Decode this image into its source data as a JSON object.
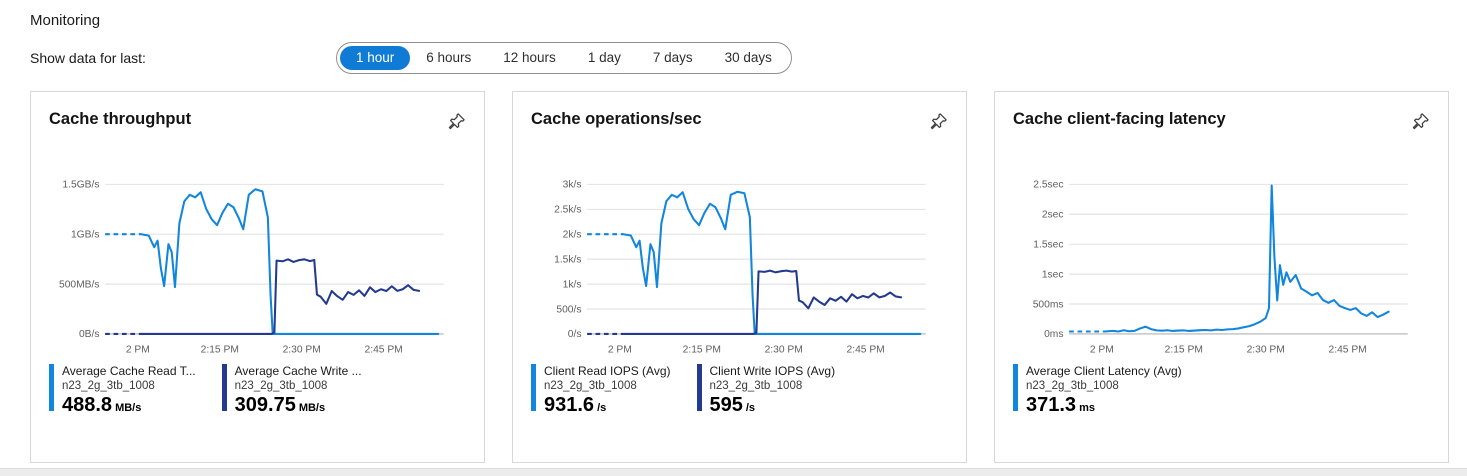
{
  "header": {
    "title": "Monitoring",
    "filter_label": "Show data for last:"
  },
  "time_ranges": [
    {
      "label": "1 hour",
      "selected": true
    },
    {
      "label": "6 hours",
      "selected": false
    },
    {
      "label": "12 hours",
      "selected": false
    },
    {
      "label": "1 day",
      "selected": false
    },
    {
      "label": "7 days",
      "selected": false
    },
    {
      "label": "30 days",
      "selected": false
    }
  ],
  "colors": {
    "accent": "#0f7bd4",
    "series_light": "#1285dd",
    "series_dark": "#233a8f",
    "grid": "#dedede",
    "baseline": "#9c9c9c",
    "axis_text": "#5f5f5f"
  },
  "cards": [
    {
      "title": "Cache throughput",
      "legend": [
        {
          "name": "Average Cache Read T...",
          "resource": "n23_2g_3tb_1008",
          "value": "488.8",
          "unit": "MB/s",
          "color": "#1285dd"
        },
        {
          "name": "Average Cache Write ...",
          "resource": "n23_2g_3tb_1008",
          "value": "309.75",
          "unit": "MB/s",
          "color": "#233a8f"
        }
      ]
    },
    {
      "title": "Cache operations/sec",
      "legend": [
        {
          "name": "Client Read IOPS (Avg)",
          "resource": "n23_2g_3tb_1008",
          "value": "931.6",
          "unit": "/s",
          "color": "#1285dd"
        },
        {
          "name": "Client Write IOPS (Avg)",
          "resource": "n23_2g_3tb_1008",
          "value": "595",
          "unit": "/s",
          "color": "#233a8f"
        }
      ]
    },
    {
      "title": "Cache client-facing latency",
      "legend": [
        {
          "name": "Average Client Latency (Avg)",
          "resource": "n23_2g_3tb_1008",
          "value": "371.3",
          "unit": "ms",
          "color": "#1285dd"
        }
      ]
    }
  ],
  "chart_data": [
    {
      "type": "line",
      "title": "Cache throughput",
      "x_domain": [
        0,
        62
      ],
      "y_domain": [
        0,
        1650
      ],
      "y_ticks": [
        {
          "v": 1500,
          "label": "1.5GB/s"
        },
        {
          "v": 1000,
          "label": "1GB/s"
        },
        {
          "v": 500,
          "label": "500MB/s"
        },
        {
          "v": 0,
          "label": "0B/s"
        }
      ],
      "x_ticks": [
        {
          "v": 6,
          "label": "2 PM"
        },
        {
          "v": 21,
          "label": "2:15 PM"
        },
        {
          "v": 36,
          "label": "2:30 PM"
        },
        {
          "v": 51,
          "label": "2:45 PM"
        }
      ],
      "series": [
        {
          "name": "Average Cache Read T...",
          "color": "#1285dd",
          "dash": [
            [
              0,
              1000
            ],
            [
              6.5,
              1000
            ]
          ],
          "points": [
            [
              6.5,
              1000
            ],
            [
              8,
              985
            ],
            [
              9,
              870
            ],
            [
              9.6,
              935
            ],
            [
              10.2,
              660
            ],
            [
              10.8,
              480
            ],
            [
              11.6,
              900
            ],
            [
              12.2,
              820
            ],
            [
              12.8,
              470
            ],
            [
              13.6,
              1110
            ],
            [
              14.5,
              1330
            ],
            [
              15.5,
              1395
            ],
            [
              16.5,
              1370
            ],
            [
              17.5,
              1420
            ],
            [
              18.5,
              1255
            ],
            [
              19.5,
              1150
            ],
            [
              20.5,
              1090
            ],
            [
              21.5,
              1215
            ],
            [
              22.5,
              1305
            ],
            [
              23.5,
              1270
            ],
            [
              24.5,
              1160
            ],
            [
              25.3,
              1050
            ],
            [
              26.3,
              1395
            ],
            [
              27.5,
              1450
            ],
            [
              28.8,
              1430
            ],
            [
              29.8,
              1170
            ],
            [
              30.3,
              390
            ],
            [
              30.7,
              0
            ],
            [
              33,
              0
            ],
            [
              61,
              0
            ]
          ]
        },
        {
          "name": "Average Cache Write ...",
          "color": "#233a8f",
          "dash": [
            [
              0,
              0
            ],
            [
              6.5,
              0
            ]
          ],
          "points": [
            [
              6.5,
              0
            ],
            [
              30.5,
              0
            ],
            [
              31,
              15
            ],
            [
              31.4,
              735
            ],
            [
              32.5,
              728
            ],
            [
              33.5,
              748
            ],
            [
              34.5,
              722
            ],
            [
              35.5,
              740
            ],
            [
              36.5,
              748
            ],
            [
              37.5,
              730
            ],
            [
              38.3,
              742
            ],
            [
              38.8,
              395
            ],
            [
              39.5,
              372
            ],
            [
              40.5,
              302
            ],
            [
              41.5,
              430
            ],
            [
              42.5,
              380
            ],
            [
              43.5,
              342
            ],
            [
              44.5,
              420
            ],
            [
              45.5,
              392
            ],
            [
              46.5,
              438
            ],
            [
              47.5,
              382
            ],
            [
              48.5,
              468
            ],
            [
              49.5,
              420
            ],
            [
              50.5,
              448
            ],
            [
              51.5,
              430
            ],
            [
              52.5,
              478
            ],
            [
              53.5,
              432
            ],
            [
              54.5,
              448
            ],
            [
              55.5,
              488
            ],
            [
              56.5,
              442
            ],
            [
              57.5,
              432
            ]
          ]
        }
      ]
    },
    {
      "type": "line",
      "title": "Cache operations/sec",
      "x_domain": [
        0,
        62
      ],
      "y_domain": [
        0,
        3300
      ],
      "y_ticks": [
        {
          "v": 3000,
          "label": "3k/s"
        },
        {
          "v": 2500,
          "label": "2.5k/s"
        },
        {
          "v": 2000,
          "label": "2k/s"
        },
        {
          "v": 1500,
          "label": "1.5k/s"
        },
        {
          "v": 1000,
          "label": "1k/s"
        },
        {
          "v": 500,
          "label": "500/s"
        },
        {
          "v": 0,
          "label": "0/s"
        }
      ],
      "x_ticks": [
        {
          "v": 6,
          "label": "2 PM"
        },
        {
          "v": 21,
          "label": "2:15 PM"
        },
        {
          "v": 36,
          "label": "2:30 PM"
        },
        {
          "v": 51,
          "label": "2:45 PM"
        }
      ],
      "series": [
        {
          "name": "Client Read IOPS (Avg)",
          "color": "#1285dd",
          "dash": [
            [
              0,
              2000
            ],
            [
              6.5,
              2000
            ]
          ],
          "points": [
            [
              6.5,
              2000
            ],
            [
              8,
              1975
            ],
            [
              9,
              1740
            ],
            [
              9.6,
              1870
            ],
            [
              10.2,
              1320
            ],
            [
              10.8,
              960
            ],
            [
              11.6,
              1800
            ],
            [
              12.2,
              1640
            ],
            [
              12.8,
              940
            ],
            [
              13.6,
              2220
            ],
            [
              14.5,
              2660
            ],
            [
              15.5,
              2790
            ],
            [
              16.5,
              2740
            ],
            [
              17.5,
              2840
            ],
            [
              18.5,
              2510
            ],
            [
              19.5,
              2300
            ],
            [
              20.5,
              2180
            ],
            [
              21.5,
              2430
            ],
            [
              22.5,
              2610
            ],
            [
              23.5,
              2540
            ],
            [
              24.5,
              2320
            ],
            [
              25.3,
              2100
            ],
            [
              26.3,
              2790
            ],
            [
              27.5,
              2850
            ],
            [
              28.8,
              2820
            ],
            [
              29.8,
              2340
            ],
            [
              30.3,
              780
            ],
            [
              30.7,
              0
            ],
            [
              33,
              0
            ],
            [
              61,
              0
            ]
          ]
        },
        {
          "name": "Client Write IOPS (Avg)",
          "color": "#233a8f",
          "dash": [
            [
              0,
              0
            ],
            [
              6.5,
              0
            ]
          ],
          "points": [
            [
              6.5,
              0
            ],
            [
              30.5,
              0
            ],
            [
              31,
              25
            ],
            [
              31.4,
              1255
            ],
            [
              32.5,
              1245
            ],
            [
              33.5,
              1270
            ],
            [
              34.5,
              1235
            ],
            [
              35.5,
              1258
            ],
            [
              36.5,
              1270
            ],
            [
              37.5,
              1248
            ],
            [
              38.3,
              1262
            ],
            [
              38.8,
              672
            ],
            [
              39.5,
              633
            ],
            [
              40.5,
              514
            ],
            [
              41.5,
              731
            ],
            [
              42.5,
              646
            ],
            [
              43.5,
              581
            ],
            [
              44.5,
              714
            ],
            [
              45.5,
              666
            ],
            [
              46.5,
              745
            ],
            [
              47.5,
              649
            ],
            [
              48.5,
              796
            ],
            [
              49.5,
              714
            ],
            [
              50.5,
              762
            ],
            [
              51.5,
              731
            ],
            [
              52.5,
              813
            ],
            [
              53.5,
              734
            ],
            [
              54.5,
              762
            ],
            [
              55.5,
              830
            ],
            [
              56.5,
              751
            ],
            [
              57.5,
              734
            ]
          ]
        }
      ]
    },
    {
      "type": "line",
      "title": "Cache client-facing latency",
      "x_domain": [
        0,
        62
      ],
      "y_domain": [
        0,
        2750
      ],
      "y_ticks": [
        {
          "v": 2500,
          "label": "2.5sec"
        },
        {
          "v": 2000,
          "label": "2sec"
        },
        {
          "v": 1500,
          "label": "1.5sec"
        },
        {
          "v": 1000,
          "label": "1sec"
        },
        {
          "v": 500,
          "label": "500ms"
        },
        {
          "v": 0,
          "label": "0ms"
        }
      ],
      "x_ticks": [
        {
          "v": 6,
          "label": "2 PM"
        },
        {
          "v": 21,
          "label": "2:15 PM"
        },
        {
          "v": 36,
          "label": "2:30 PM"
        },
        {
          "v": 51,
          "label": "2:45 PM"
        }
      ],
      "series": [
        {
          "name": "Average Client Latency (Avg)",
          "color": "#1285dd",
          "dash": [
            [
              0,
              40
            ],
            [
              6.5,
              40
            ]
          ],
          "points": [
            [
              6.5,
              40
            ],
            [
              8,
              52
            ],
            [
              9,
              40
            ],
            [
              10,
              62
            ],
            [
              11,
              46
            ],
            [
              12,
              52
            ],
            [
              13,
              92
            ],
            [
              14,
              122
            ],
            [
              15,
              82
            ],
            [
              16,
              60
            ],
            [
              17,
              54
            ],
            [
              18,
              62
            ],
            [
              19,
              50
            ],
            [
              20,
              56
            ],
            [
              21,
              60
            ],
            [
              22,
              50
            ],
            [
              23,
              56
            ],
            [
              24,
              62
            ],
            [
              25,
              66
            ],
            [
              26,
              60
            ],
            [
              27,
              72
            ],
            [
              28,
              66
            ],
            [
              29,
              76
            ],
            [
              30,
              82
            ],
            [
              31,
              92
            ],
            [
              32,
              112
            ],
            [
              33,
              132
            ],
            [
              34,
              162
            ],
            [
              35,
              205
            ],
            [
              36,
              265
            ],
            [
              36.6,
              430
            ],
            [
              37.1,
              2480
            ],
            [
              37.6,
              1280
            ],
            [
              38.1,
              560
            ],
            [
              38.6,
              1150
            ],
            [
              39.2,
              820
            ],
            [
              39.8,
              1030
            ],
            [
              40.5,
              870
            ],
            [
              41.5,
              985
            ],
            [
              42.5,
              760
            ],
            [
              43.5,
              705
            ],
            [
              44.5,
              645
            ],
            [
              45.5,
              685
            ],
            [
              46.5,
              565
            ],
            [
              47.5,
              520
            ],
            [
              48.5,
              565
            ],
            [
              49.5,
              470
            ],
            [
              50.5,
              432
            ],
            [
              51.5,
              402
            ],
            [
              52.5,
              432
            ],
            [
              53.5,
              342
            ],
            [
              54.5,
              302
            ],
            [
              55.5,
              362
            ],
            [
              56.5,
              282
            ],
            [
              57.5,
              322
            ],
            [
              58.5,
              372
            ]
          ]
        }
      ]
    }
  ]
}
